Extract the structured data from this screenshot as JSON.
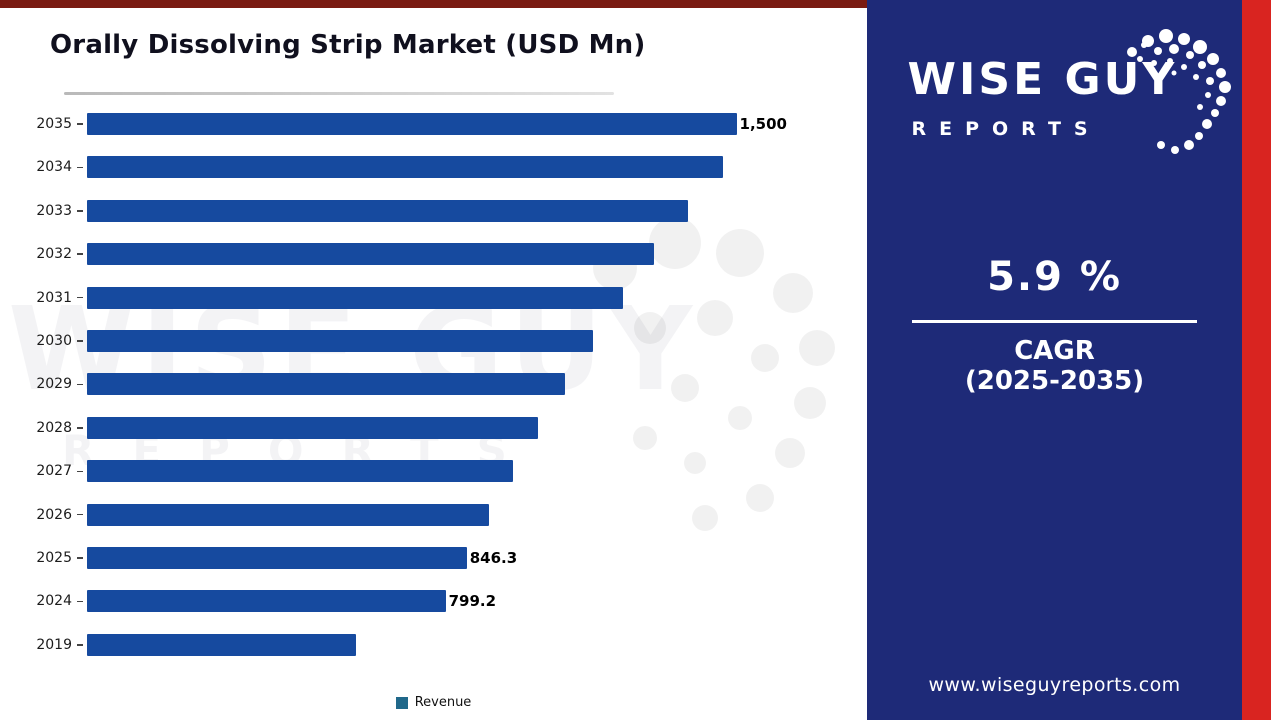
{
  "header": {
    "title": "Orally Dissolving Strip Market (USD Mn)"
  },
  "chart_data": {
    "type": "bar",
    "orientation": "horizontal",
    "title": "Orally Dissolving Strip Market (USD Mn)",
    "xlabel": "",
    "ylabel": "",
    "xlim": [
      0,
      1560
    ],
    "grid": false,
    "categories": [
      "2035",
      "2034",
      "2033",
      "2032",
      "2031",
      "2030",
      "2029",
      "2028",
      "2027",
      "2026",
      "2025",
      "2024",
      "2019"
    ],
    "values": [
      1500,
      1417.7,
      1338.7,
      1264.1,
      1193.7,
      1127.2,
      1064.4,
      1005.1,
      949.1,
      896.2,
      846.3,
      799.2,
      600
    ],
    "value_labels": [
      "1,500",
      "",
      "",
      "",
      "",
      "",
      "",
      "",
      "",
      "",
      "846.3",
      "799.2",
      ""
    ],
    "series": [
      {
        "name": "Revenue"
      }
    ],
    "legend": {
      "label": "Revenue",
      "position": "bottom"
    },
    "bar_color": "#164a9f",
    "legend_marker_color": "#20688a"
  },
  "sidebar": {
    "logo_line1": "WISE GUY",
    "logo_line2": "REPORTS",
    "cagr_value": "5.9 %",
    "cagr_line1": "CAGR",
    "cagr_line2": "(2025-2035)",
    "website": "www.wiseguyreports.com"
  },
  "watermark": {
    "line1": "WISE GUY",
    "line2": "REPORTS"
  },
  "colors": {
    "panel_bg": "#1e2a78",
    "accent_red": "#d92420",
    "top_strip": "#7a1b12",
    "bar": "#164a9f"
  }
}
